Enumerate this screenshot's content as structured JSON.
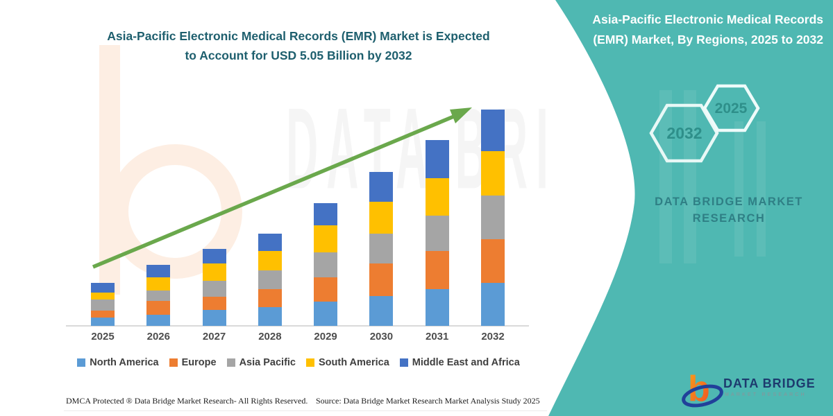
{
  "chart": {
    "title_line1": "Asia-Pacific Electronic Medical Records (EMR) Market is Expected",
    "title_line2": "to Account for USD 5.05 Billion by 2032",
    "title_color": "#1e5f6e",
    "arrow_color": "#6aa84c"
  },
  "chart_data": {
    "type": "bar",
    "stacked": true,
    "title": "Asia-Pacific Electronic Medical Records (EMR) Market is Expected to Account for USD 5.05 Billion by 2032",
    "unit": "USD Billion (estimated from bar heights; 2032 total = 5.05)",
    "categories": [
      "2025",
      "2026",
      "2027",
      "2028",
      "2029",
      "2030",
      "2031",
      "2032"
    ],
    "series": [
      {
        "name": "North America",
        "color": "#5B9BD5",
        "values": [
          0.19,
          0.26,
          0.37,
          0.44,
          0.57,
          0.7,
          0.85,
          1.0
        ]
      },
      {
        "name": "Europe",
        "color": "#ED7D31",
        "values": [
          0.16,
          0.32,
          0.31,
          0.41,
          0.57,
          0.76,
          0.9,
          1.03
        ]
      },
      {
        "name": "Asia Pacific",
        "color": "#A5A5A5",
        "values": [
          0.27,
          0.24,
          0.37,
          0.45,
          0.58,
          0.7,
          0.82,
          1.01
        ]
      },
      {
        "name": "South America",
        "color": "#FFC000",
        "values": [
          0.16,
          0.31,
          0.41,
          0.44,
          0.63,
          0.73,
          0.88,
          1.03
        ]
      },
      {
        "name": "Middle East and Africa",
        "color": "#4472C4",
        "values": [
          0.22,
          0.3,
          0.34,
          0.42,
          0.52,
          0.71,
          0.88,
          0.98
        ]
      }
    ],
    "totals": [
      1.0,
      1.43,
      1.8,
      2.16,
      2.87,
      3.6,
      4.33,
      5.05
    ],
    "ylim": [
      0,
      5.2
    ],
    "grid": false,
    "legend_position": "bottom",
    "trend_arrow": true
  },
  "sidebar": {
    "bg_color": "#4FB8B2",
    "title": "Asia-Pacific Electronic Medical Records (EMR) Market, By Regions, 2025 to 2032",
    "hexagons": [
      {
        "label": "2032"
      },
      {
        "label": "2025"
      }
    ],
    "brand_line1": "DATA BRIDGE MARKET",
    "brand_line2": "RESEARCH"
  },
  "logo": {
    "name_text": "DATA BRIDGE",
    "sub_text": "MARKET RESEARCH"
  },
  "footer": {
    "left": "DMCA Protected ® Data Bridge Market Research- All Rights Reserved.",
    "right": "Source: Data Bridge Market Research Market Analysis Study 2025"
  },
  "watermark": {
    "text": "DATA BRI"
  }
}
